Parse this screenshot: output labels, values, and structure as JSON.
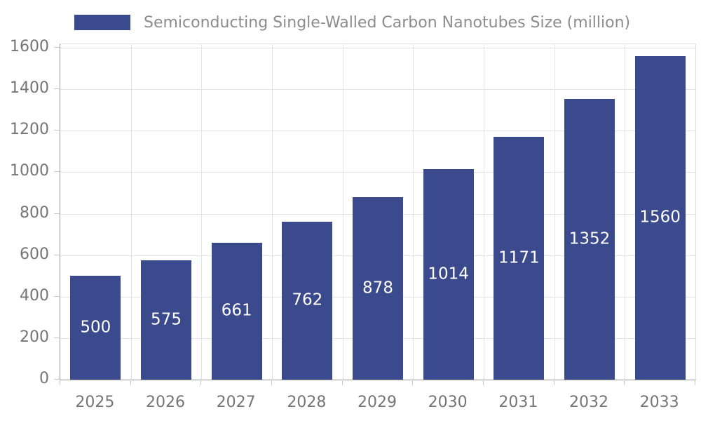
{
  "chart_data": {
    "type": "bar",
    "title": "Semiconducting Single-Walled Carbon Nanotubes Size (million)",
    "legend_label": "Semiconducting Single-Walled Carbon Nanotubes Size (million)",
    "legend_position": "top-left",
    "categories": [
      "2025",
      "2026",
      "2027",
      "2028",
      "2029",
      "2030",
      "2031",
      "2032",
      "2033"
    ],
    "values": [
      500,
      575,
      661,
      762,
      878,
      1014,
      1171,
      1352,
      1560
    ],
    "xlabel": "",
    "ylabel": "",
    "ylim": [
      0,
      1600
    ],
    "yticks": [
      0,
      200,
      400,
      600,
      800,
      1000,
      1200,
      1400,
      1600
    ],
    "grid": true,
    "value_label_position": "inside-center"
  },
  "colors": {
    "bar": "#3a4a8c",
    "bar_label": "#ffffff",
    "grid_line": "#e2e2e8",
    "axis_line": "#9a9a9a",
    "frame_line": "#e0e0e0",
    "tick_mark": "#c8c8c8",
    "axis_label": "#757575",
    "legend_text": "#8c8c8c",
    "background": "#ffffff"
  }
}
